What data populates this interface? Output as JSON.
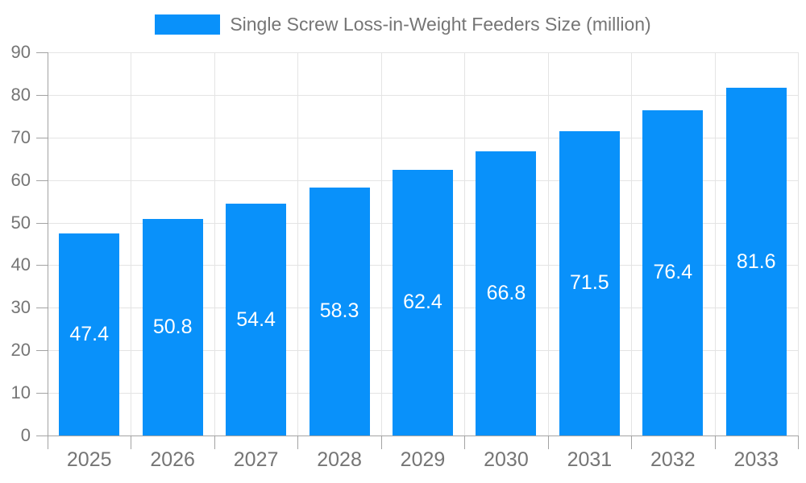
{
  "chart_data": {
    "type": "bar",
    "title": "Single Screw Loss-in-Weight Feeders Size (million)",
    "categories": [
      "2025",
      "2026",
      "2027",
      "2028",
      "2029",
      "2030",
      "2031",
      "2032",
      "2033"
    ],
    "values": [
      47.4,
      50.8,
      54.4,
      58.3,
      62.4,
      66.8,
      71.5,
      76.4,
      81.6
    ],
    "xlabel": "",
    "ylabel": "",
    "ylim": [
      0,
      90
    ],
    "ytick_step": 10,
    "yticks": [
      0,
      10,
      20,
      30,
      40,
      50,
      60,
      70,
      80,
      90
    ],
    "grid": true,
    "legend_position": "top-center",
    "value_label_position": "inside-center",
    "colors": {
      "bar": "#0991FA",
      "grid": "#E4E4E4",
      "axis": "#A3A3A3",
      "tick": "#A3A3A3",
      "axis_text": "#757575",
      "legend_text": "#757575",
      "value_text": "#FFFFFF",
      "background": "#FFFFFF"
    }
  }
}
